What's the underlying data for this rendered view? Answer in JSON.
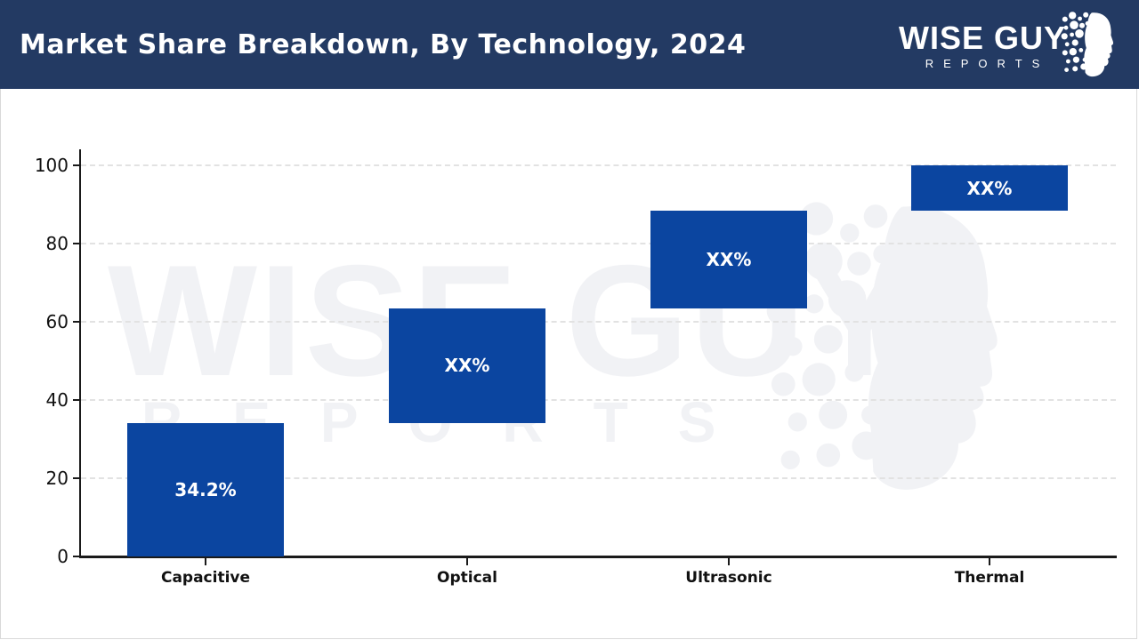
{
  "header": {
    "title": "Market Share Breakdown, By Technology, 2024",
    "background_color": "#233a63",
    "logo": {
      "primary": "WISE GUY",
      "secondary": "REPORTS"
    }
  },
  "watermark": {
    "line1": "WISE GUY",
    "line2": "REPORTS"
  },
  "chart_data": {
    "type": "bar",
    "subtype": "waterfall",
    "title": "Market Share Breakdown, By Technology, 2024",
    "categories": [
      "Capacitive",
      "Optical",
      "Ultrasonic",
      "Thermal"
    ],
    "segments": [
      {
        "category": "Capacitive",
        "start": 0,
        "end": 34.2,
        "value": 34.2,
        "label": "34.2%"
      },
      {
        "category": "Optical",
        "start": 34.2,
        "end": 63.5,
        "value": 29.3,
        "label": "XX%"
      },
      {
        "category": "Ultrasonic",
        "start": 63.5,
        "end": 88.3,
        "value": 24.8,
        "label": "XX%"
      },
      {
        "category": "Thermal",
        "start": 88.3,
        "end": 100,
        "value": 11.7,
        "label": "XX%"
      }
    ],
    "ylim": [
      0,
      100
    ],
    "yticks": [
      0,
      20,
      40,
      60,
      80,
      100
    ],
    "xlabel": "",
    "ylabel": "",
    "grid": "horizontal-dashed",
    "legend": "none",
    "bar_color": "#0b45a0",
    "bar_label_color": "#ffffff",
    "axis_color": "#1a1a1a",
    "gridline_color": "#e2e2e2"
  }
}
